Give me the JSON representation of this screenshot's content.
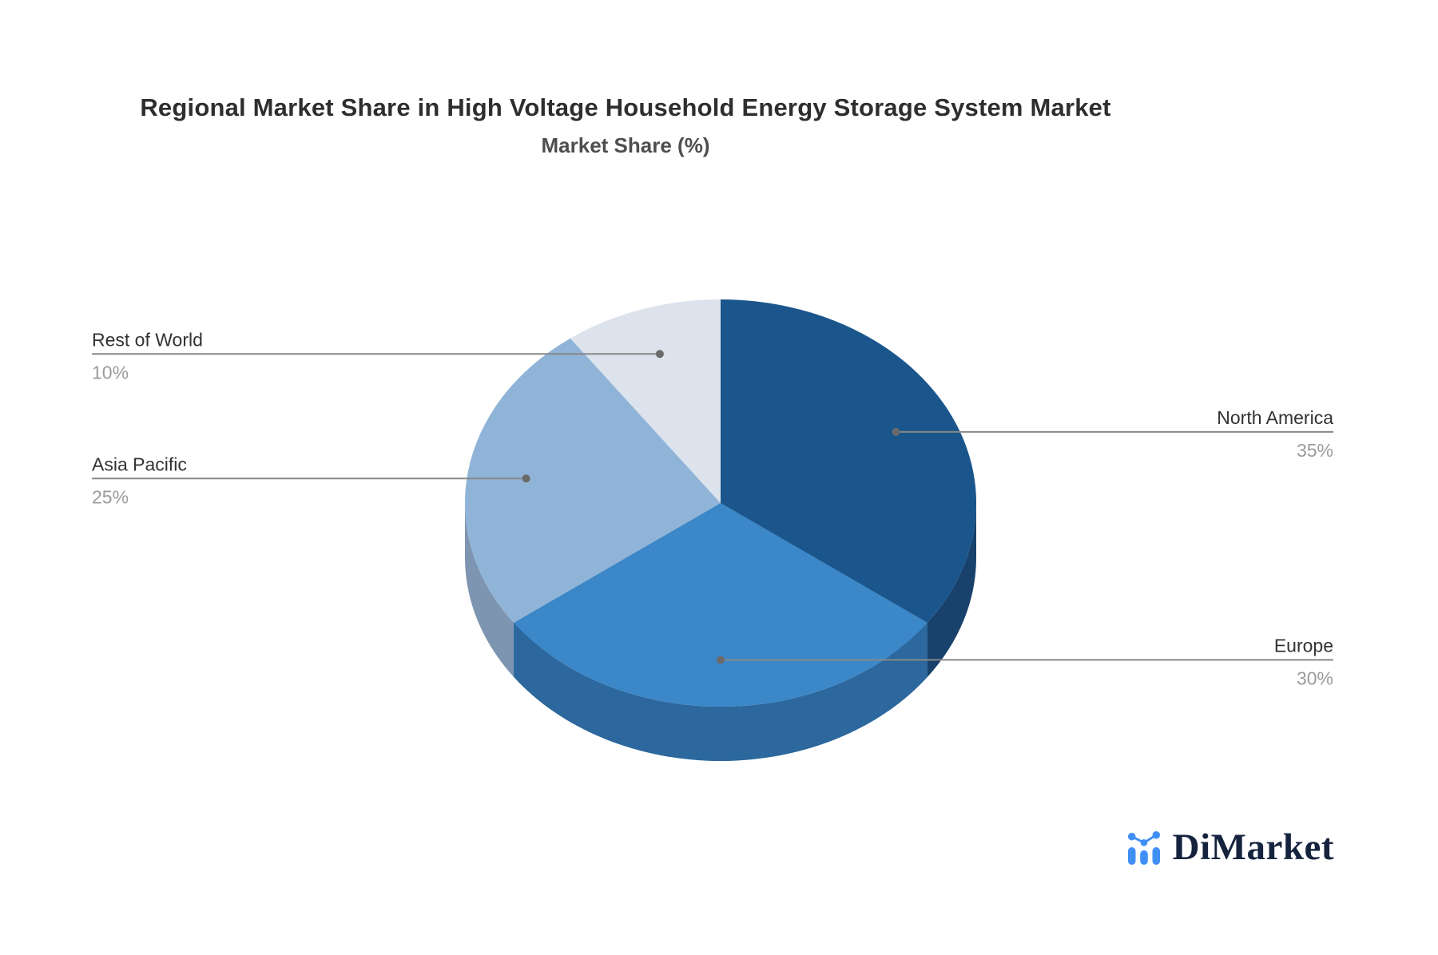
{
  "page": {
    "background": "#ffffff"
  },
  "header": {
    "title": "Regional Market Share in High Voltage Household Energy Storage System Market",
    "subtitle": "Market Share (%)"
  },
  "watermark": {
    "brand": "DiMarket",
    "icon": "bar-line-chart-icon",
    "icon_color": "#3f90f5",
    "text_color": "#16233e"
  },
  "style": {
    "title_color": "#2e2e2e",
    "subtitle_color": "#4e4e4e",
    "label_color": "#333333",
    "percent_color": "#9b9b9b",
    "leader_line_color": "#888888",
    "leader_dot_color": "#6a6a6a"
  },
  "chart_data": {
    "type": "pie",
    "projection": "3d",
    "title": "Regional Market Share in High Voltage Household Energy Storage System Market",
    "subtitle": "Market Share (%)",
    "unit": "%",
    "start_angle_deg": 0,
    "direction": "clockwise",
    "legend": false,
    "slices": [
      {
        "label": "North America",
        "value": 35,
        "percent_label": "35%",
        "color": "#1a568c",
        "side_color": "#18416b",
        "label_side": "right"
      },
      {
        "label": "Europe",
        "value": 30,
        "percent_label": "30%",
        "color": "#3b87c8",
        "side_color": "#2c689d",
        "label_side": "right"
      },
      {
        "label": "Asia Pacific",
        "value": 25,
        "percent_label": "25%",
        "color": "#90b4d8",
        "side_color": "#7d95b0",
        "label_side": "left"
      },
      {
        "label": "Rest of World",
        "value": 10,
        "percent_label": "10%",
        "color": "#dce3ed",
        "side_color": "#c2cbd9",
        "label_side": "left"
      }
    ]
  }
}
